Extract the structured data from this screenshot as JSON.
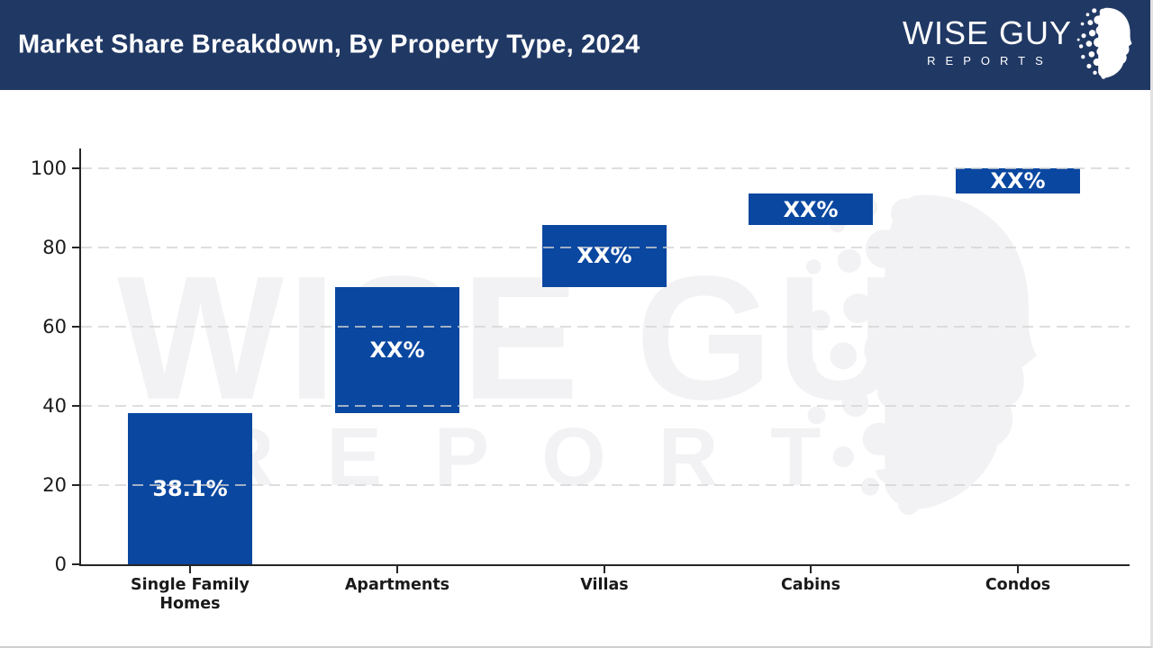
{
  "header": {
    "title": "Market Share Breakdown, By Property Type, 2024",
    "logo": {
      "line1": "WISE GUY",
      "line2": "REPORTS"
    }
  },
  "watermark": {
    "line1": "WISE GUY",
    "line2": "REPORTS"
  },
  "colors": {
    "header_bg": "#203864",
    "header_text": "#ffffff",
    "bar": "#0a47a0",
    "bar_label": "#ffffff",
    "grid": "rgba(211,211,211,0.75)",
    "axis": "#262626",
    "tick_label": "#1a1a1a",
    "watermark": "#f2f2f4"
  },
  "chart_data": {
    "type": "bar",
    "subtype": "waterfall",
    "title": "Market Share Breakdown, By Property Type, 2024",
    "categories": [
      "Single Family Homes",
      "Apartments",
      "Villas",
      "Cabins",
      "Condos"
    ],
    "tick_lines": [
      [
        "Single Family",
        "Homes"
      ],
      [
        "Apartments"
      ],
      [
        "Villas"
      ],
      [
        "Cabins"
      ],
      [
        "Condos"
      ]
    ],
    "segments": [
      {
        "category": "Single Family Homes",
        "start": 0,
        "end": 38.1,
        "label": "38.1%"
      },
      {
        "category": "Apartments",
        "start": 38.1,
        "end": 70,
        "label": "XX%"
      },
      {
        "category": "Villas",
        "start": 70,
        "end": 85.7,
        "label": "XX%"
      },
      {
        "category": "Cabins",
        "start": 85.7,
        "end": 93.6,
        "label": "XX%"
      },
      {
        "category": "Condos",
        "start": 93.6,
        "end": 100,
        "label": "XX%"
      }
    ],
    "y_ticks": [
      0,
      20,
      40,
      60,
      80,
      100
    ],
    "ylim": [
      0,
      105
    ],
    "xlabel": "",
    "ylabel": "",
    "grid": "dashed-horizontal",
    "legend": "none"
  }
}
